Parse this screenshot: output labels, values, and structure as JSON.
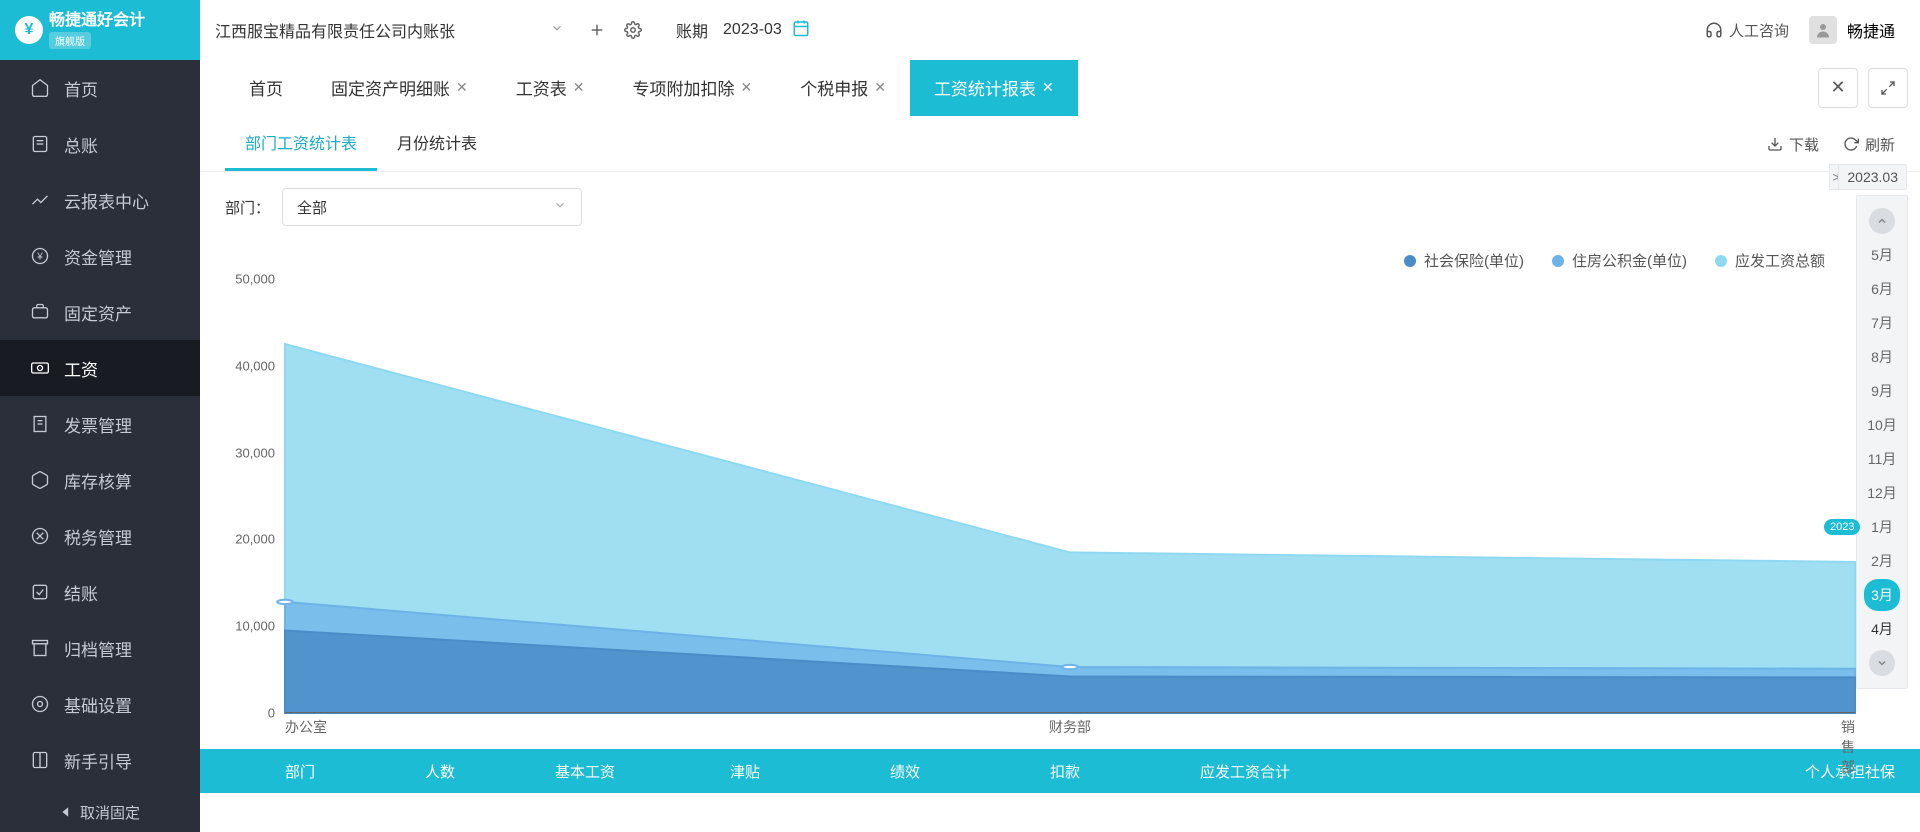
{
  "app": {
    "logo_title": "畅捷通好会计",
    "logo_sub": "旗舰版",
    "company": "江西服宝精品有限责任公司内账张",
    "period_label": "账期",
    "period_value": "2023-03"
  },
  "header_right": {
    "support": "人工咨询",
    "username": "畅捷通"
  },
  "sidebar": {
    "items": [
      {
        "label": "首页",
        "icon": "home"
      },
      {
        "label": "总账",
        "icon": "ledger"
      },
      {
        "label": "云报表中心",
        "icon": "chart"
      },
      {
        "label": "资金管理",
        "icon": "fund"
      },
      {
        "label": "固定资产",
        "icon": "asset"
      },
      {
        "label": "工资",
        "icon": "salary",
        "active": true
      },
      {
        "label": "发票管理",
        "icon": "invoice"
      },
      {
        "label": "库存核算",
        "icon": "stock"
      },
      {
        "label": "税务管理",
        "icon": "tax"
      },
      {
        "label": "结账",
        "icon": "close"
      },
      {
        "label": "归档管理",
        "icon": "archive"
      },
      {
        "label": "基础设置",
        "icon": "settings"
      },
      {
        "label": "新手引导",
        "icon": "guide"
      }
    ],
    "footer": "取消固定"
  },
  "tabs": {
    "items": [
      {
        "label": "首页",
        "closable": false
      },
      {
        "label": "固定资产明细账",
        "closable": true
      },
      {
        "label": "工资表",
        "closable": true
      },
      {
        "label": "专项附加扣除",
        "closable": true
      },
      {
        "label": "个税申报",
        "closable": true
      },
      {
        "label": "工资统计报表",
        "closable": true,
        "active": true
      }
    ]
  },
  "subtabs": {
    "items": [
      {
        "label": "部门工资统计表",
        "active": true
      },
      {
        "label": "月份统计表"
      }
    ],
    "actions": {
      "download": "下载",
      "refresh": "刷新"
    }
  },
  "filter": {
    "label": "部门：",
    "value": "全部"
  },
  "chart": {
    "type": "area",
    "legend": [
      {
        "label": "社会保险(单位)",
        "color": "#4a8cc7"
      },
      {
        "label": "住房公积金(单位)",
        "color": "#6db3e8"
      },
      {
        "label": "应发工资总额",
        "color": "#8fd9f0"
      }
    ],
    "categories": [
      "办公室",
      "财务部",
      "销售部"
    ],
    "series": [
      {
        "name": "应发工资总额",
        "color": "#8fd9f0",
        "fill_opacity": 0.85,
        "values": [
          42500,
          18500,
          17400
        ]
      },
      {
        "name": "住房公积金(单位)",
        "color": "#6db3e8",
        "fill_opacity": 0.75,
        "values": [
          12800,
          5300,
          5100
        ]
      },
      {
        "name": "社会保险(单位)",
        "color": "#4a8cc7",
        "fill_opacity": 0.85,
        "values": [
          9500,
          4200,
          4100
        ]
      }
    ],
    "ylim": [
      0,
      50000
    ],
    "ytick_step": 10000,
    "yticks": [
      "0",
      "10,000",
      "20,000",
      "30,000",
      "40,000",
      "50,000"
    ],
    "background_color": "#ffffff",
    "grid_color": "#e8e8e8",
    "axis_color": "#666666",
    "tick_fontsize": 13,
    "label_fontsize": 14,
    "scatter_markers": [
      {
        "x_index": 0,
        "y": 12800,
        "color": "#6db3e8"
      },
      {
        "x_index": 1,
        "y": 5300,
        "color": "#6db3e8"
      }
    ],
    "right_scatter": [
      {
        "y": 17400,
        "color": "#8fd9f0"
      },
      {
        "y": 5100,
        "color": "#6db3e8"
      }
    ]
  },
  "table_header": {
    "columns": [
      "部门",
      "人数",
      "基本工资",
      "津贴",
      "绩效",
      "扣款",
      "应发工资合计"
    ],
    "right_col": "个人承担社保"
  },
  "month_panel": {
    "year_display": "2023.03",
    "year_tag": "2023",
    "months": [
      {
        "label": "5月"
      },
      {
        "label": "6月"
      },
      {
        "label": "7月"
      },
      {
        "label": "8月"
      },
      {
        "label": "9月"
      },
      {
        "label": "10月"
      },
      {
        "label": "11月"
      },
      {
        "label": "12月"
      },
      {
        "label": "1月",
        "year_tag": true
      },
      {
        "label": "2月"
      },
      {
        "label": "3月",
        "current": true
      },
      {
        "label": "4月",
        "latest": true
      }
    ]
  }
}
